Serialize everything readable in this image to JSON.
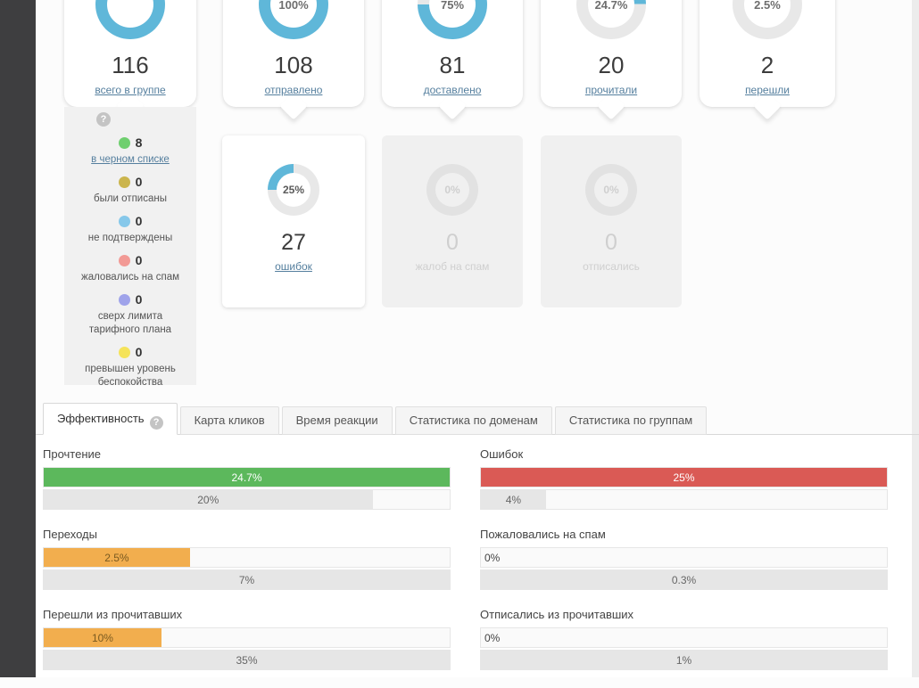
{
  "theme": {
    "blue": "#5fb7d9",
    "track": "#e8e8e8",
    "faded_track": "#e2e2e2",
    "green": "#5cb85c",
    "orange": "#f0ad4e",
    "red": "#d9534f",
    "link": "#557f9e"
  },
  "top_cards": [
    {
      "percent": "",
      "value": "116",
      "label": "всего в группе",
      "ring_pct": 100
    },
    {
      "percent": "100%",
      "value": "108",
      "label": "отправлено",
      "ring_pct": 100
    },
    {
      "percent": "75%",
      "value": "81",
      "label": "доставлено",
      "ring_pct": 75
    },
    {
      "percent": "24.7%",
      "value": "20",
      "label": "прочитали",
      "ring_pct": 24.7
    },
    {
      "percent": "2.5%",
      "value": "2",
      "label": "перешли",
      "ring_pct": 2.5
    }
  ],
  "legend": {
    "help": "?",
    "items": [
      {
        "value": "8",
        "label": "в черном списке",
        "color": "#6fcf6f"
      },
      {
        "value": "0",
        "label": "были отписаны",
        "color": "#cbb54d"
      },
      {
        "value": "0",
        "label": "не подтверждены",
        "color": "#86c8ea"
      },
      {
        "value": "0",
        "label": "жаловались на спам",
        "color": "#f29a95"
      },
      {
        "value": "0",
        "label": "сверх лимита тарифного плана",
        "color": "#9fa3ea"
      },
      {
        "value": "0",
        "label": "превышен уровень беспокойства",
        "color": "#f5e35a"
      }
    ]
  },
  "mid_cards": [
    {
      "percent": "25%",
      "value": "27",
      "label": "ошибок",
      "ring_pct": 25
    },
    {
      "percent": "0%",
      "value": "0",
      "label": "жалоб на спам",
      "ring_pct": 0
    },
    {
      "percent": "0%",
      "value": "0",
      "label": "отписались",
      "ring_pct": 0
    }
  ],
  "tabs": {
    "active_help": "?",
    "items": [
      {
        "label": "Эффективность"
      },
      {
        "label": "Карта кликов"
      },
      {
        "label": "Время реакции"
      },
      {
        "label": "Статистика по доменам"
      },
      {
        "label": "Статистика по группам"
      }
    ]
  },
  "metrics": {
    "left": [
      {
        "title": "Прочтение",
        "main": {
          "text": "24.7%",
          "width_pct": 100,
          "variant": "green"
        },
        "avg": {
          "text": "20%",
          "width_pct": 81
        }
      },
      {
        "title": "Переходы",
        "main": {
          "text": "2.5%",
          "width_pct": 36,
          "variant": "orange"
        },
        "avg": {
          "text": "7%",
          "width_pct": 100
        }
      },
      {
        "title": "Перешли из прочитавших",
        "main": {
          "text": "10%",
          "width_pct": 29,
          "variant": "orange"
        },
        "avg": {
          "text": "35%",
          "width_pct": 100
        }
      }
    ],
    "right": [
      {
        "title": "Ошибок",
        "main": {
          "text": "25%",
          "width_pct": 100,
          "variant": "red"
        },
        "avg": {
          "text": "4%",
          "width_pct": 16
        }
      },
      {
        "title": "Пожаловались на спам",
        "main": {
          "text": "0%",
          "width_pct": 0,
          "variant": "none"
        },
        "avg": {
          "text": "0.3%",
          "width_pct": 100
        }
      },
      {
        "title": "Отписались из прочитавших",
        "main": {
          "text": "0%",
          "width_pct": 0,
          "variant": "none"
        },
        "avg": {
          "text": "1%",
          "width_pct": 100
        }
      }
    ]
  }
}
